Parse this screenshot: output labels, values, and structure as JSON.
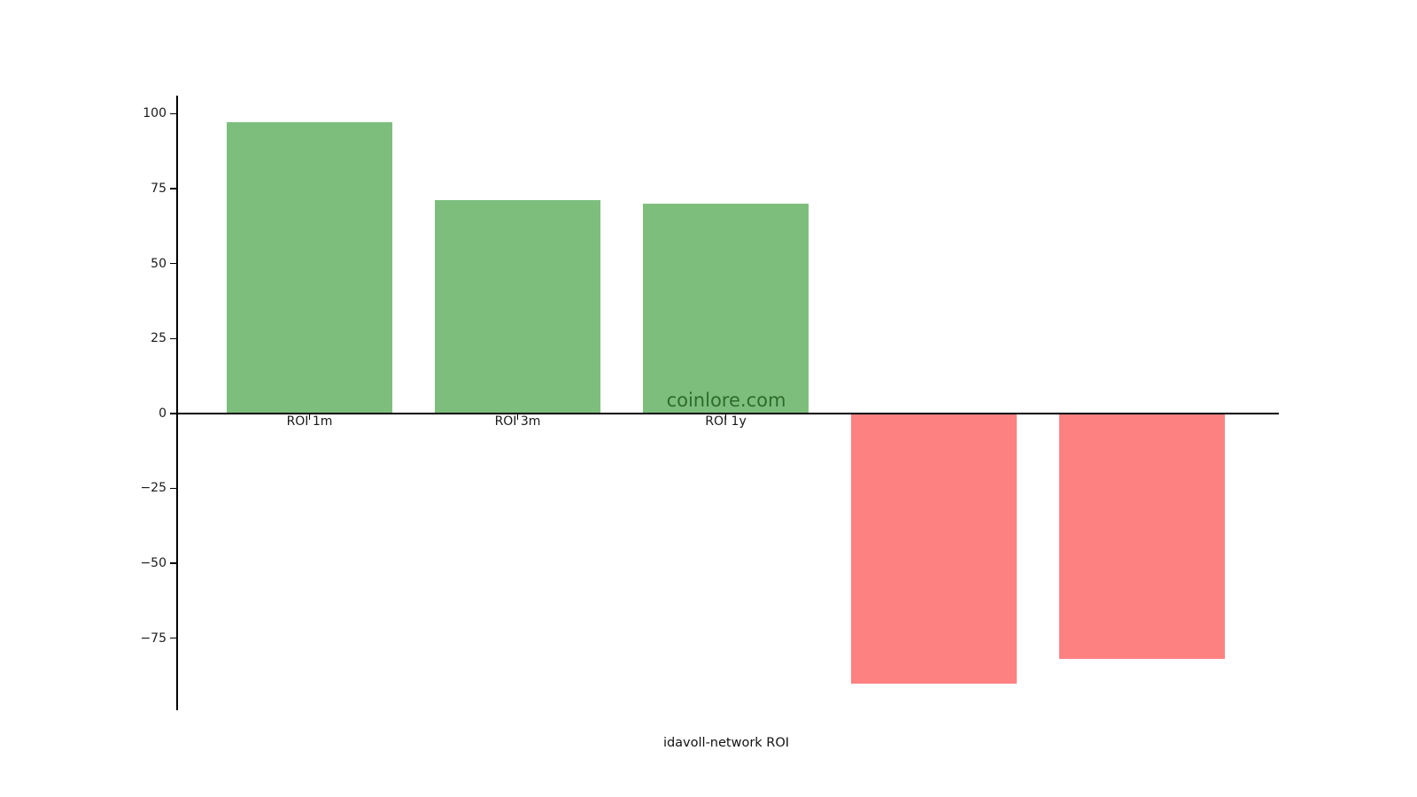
{
  "watermark": {
    "text": "coinlore.com",
    "color": "#2e6b2e"
  },
  "chart_data": {
    "type": "bar",
    "title": "idavoll-network ROI",
    "xlabel": "idavoll-network ROI",
    "ylabel": "",
    "categories": [
      "ROI 1m",
      "ROI 3m",
      "ROI 1y",
      "",
      ""
    ],
    "values": [
      97,
      71,
      70,
      -90,
      -82
    ],
    "series": [
      {
        "name": "idavoll-network ROI",
        "values": [
          97,
          71,
          70,
          -90,
          -82
        ]
      }
    ],
    "bar_colors": [
      "#7dbe7d",
      "#7dbe7d",
      "#7dbe7d",
      "#fd8181",
      "#fd8181"
    ],
    "positive_color": "#7dbe7d",
    "negative_color": "#fd8181",
    "yticks": [
      100,
      75,
      50,
      25,
      0,
      -25,
      -50,
      -75
    ],
    "ylim": [
      -99,
      106
    ],
    "grid": false,
    "legend_position": "none",
    "axis_color": "#000000",
    "tick_label_color": "#1a1a1a"
  }
}
